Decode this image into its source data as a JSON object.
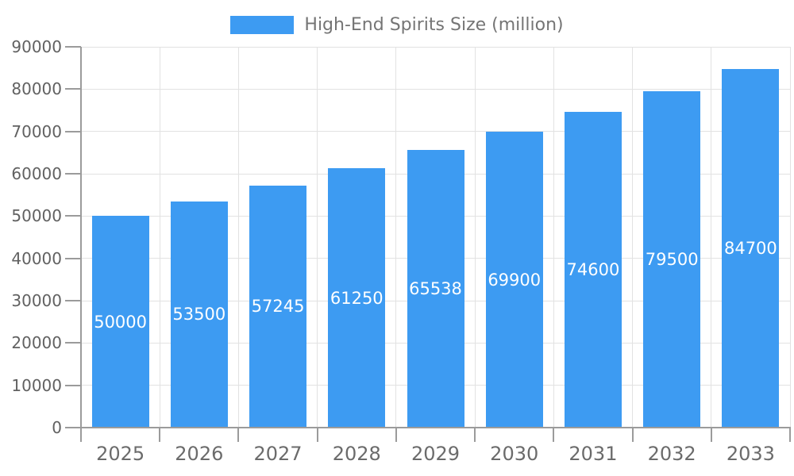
{
  "legend": {
    "label": "High-End Spirits Size (million)"
  },
  "chart_data": {
    "type": "bar",
    "title": "High-End Spirits Size (million)",
    "categories": [
      "2025",
      "2026",
      "2027",
      "2028",
      "2029",
      "2030",
      "2031",
      "2032",
      "2033"
    ],
    "values": [
      50000,
      53500,
      57245,
      61250,
      65538,
      69900,
      74600,
      79500,
      84700
    ],
    "series": [
      {
        "name": "High-End Spirits Size (million)",
        "values": [
          50000,
          53500,
          57245,
          61250,
          65538,
          69900,
          74600,
          79500,
          84700
        ]
      }
    ],
    "xlabel": "",
    "ylabel": "",
    "ylim": [
      0,
      90000
    ],
    "y_tick_step": 10000,
    "y_tick_labels": [
      "0",
      "10000",
      "20000",
      "30000",
      "40000",
      "50000",
      "60000",
      "70000",
      "80000",
      "90000"
    ],
    "grid": true,
    "legend_position": "top-center",
    "bar_labels_inside": true
  },
  "colors": {
    "bar": "#3D9BF2",
    "bar_label_text": "#ffffff",
    "axis_line": "#9b9b9b",
    "grid_line": "#e2e2e2",
    "y_label_text": "#616161",
    "x_label_text": "#6b6b6b",
    "legend_text": "#757575",
    "background": "#ffffff"
  }
}
